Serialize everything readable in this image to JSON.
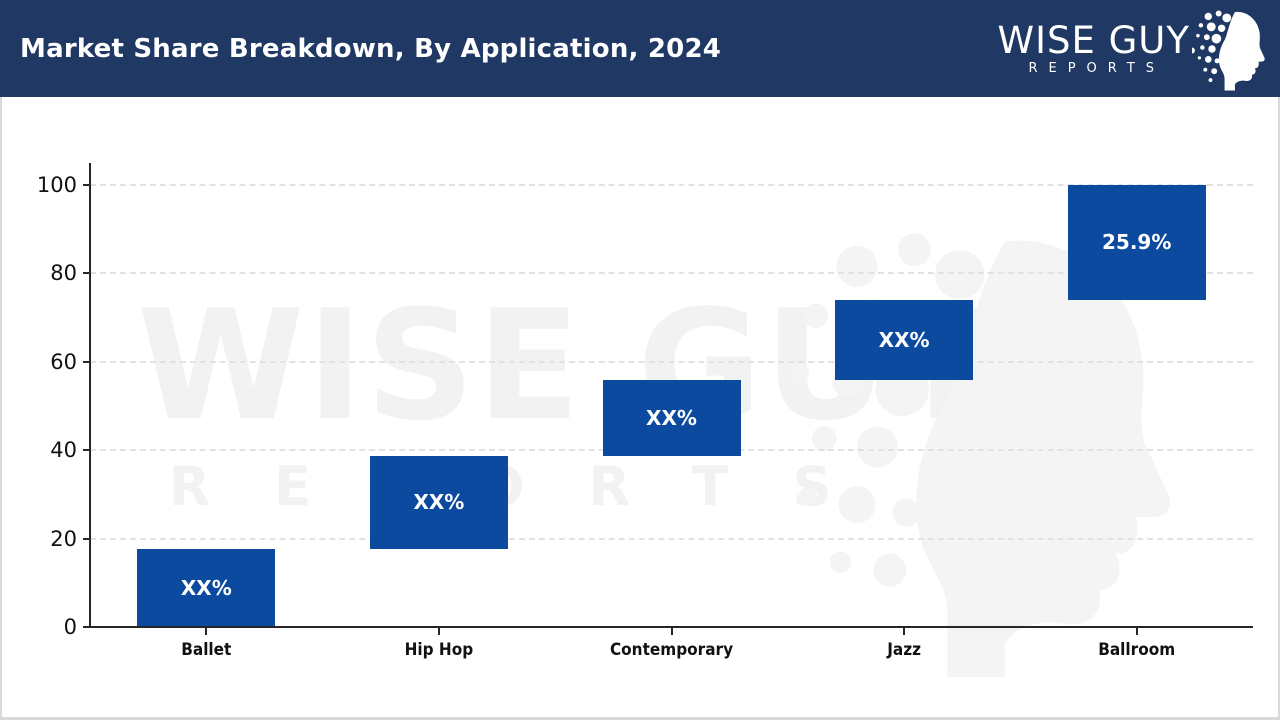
{
  "header": {
    "title": "Market Share Breakdown, By Application, 2024",
    "logo": {
      "line1": "WISE GUY",
      "line2": "REPORTS"
    }
  },
  "watermark": {
    "line1": "WISE GUY",
    "line2": "REPORTS"
  },
  "colors": {
    "header_bg": "#1f3864",
    "bar_blue": "#0b4a9e",
    "grid_gray": "#e2e2e2",
    "axis_dark": "#262626",
    "tick_text": "#111111",
    "bar_label_text": "#ffffff",
    "watermark_gray": "#f2f2f2"
  },
  "chart_data": {
    "type": "bar",
    "subtype": "waterfall",
    "title": "Market Share Breakdown, By Application, 2024",
    "categories": [
      "Ballet",
      "Hip Hop",
      "Contemporary",
      "Jazz",
      "Ballroom"
    ],
    "segments": [
      {
        "category": "Ballet",
        "start": 0,
        "end": 17.7,
        "label": "XX%"
      },
      {
        "category": "Hip Hop",
        "start": 17.7,
        "end": 38.7,
        "label": "XX%"
      },
      {
        "category": "Contemporary",
        "start": 38.7,
        "end": 55.8,
        "label": "XX%"
      },
      {
        "category": "Jazz",
        "start": 55.8,
        "end": 74.1,
        "label": "XX%"
      },
      {
        "category": "Ballroom",
        "start": 74.1,
        "end": 100,
        "label": "25.9%"
      }
    ],
    "yticks": [
      0,
      20,
      40,
      60,
      80,
      100
    ],
    "ylim": [
      0,
      105
    ],
    "xlabel": "",
    "ylabel": "",
    "grid": "horizontal-dashed",
    "legend": "none",
    "values_masked_as": "XX%"
  }
}
